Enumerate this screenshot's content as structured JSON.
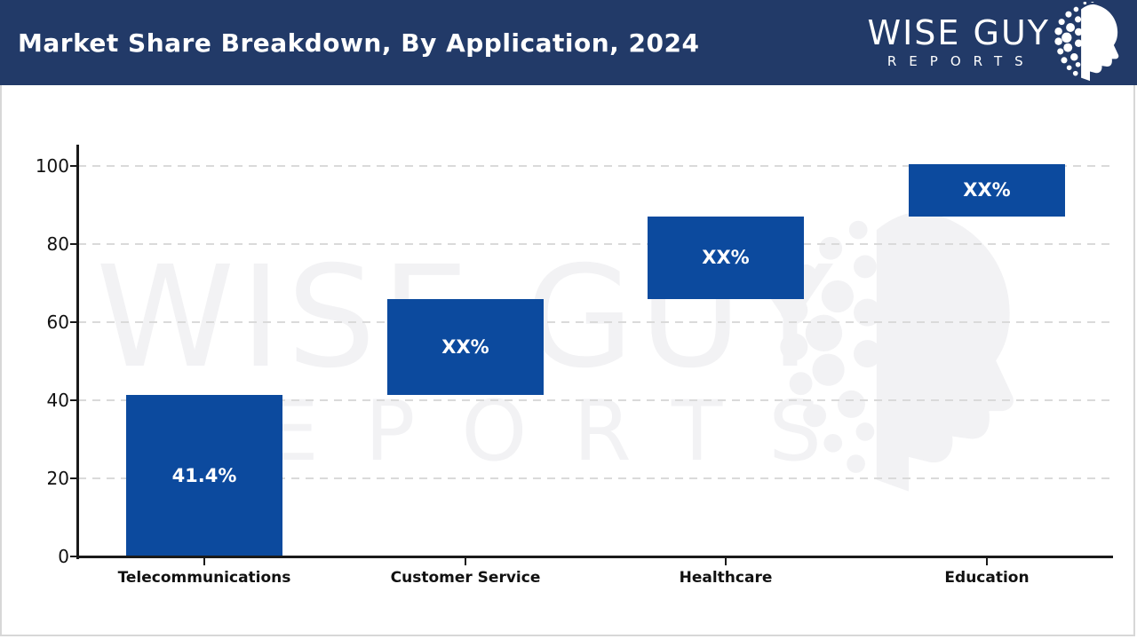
{
  "header": {
    "title": "Market Share Breakdown, By Application, 2024",
    "logo": {
      "line1": "WISE GUY",
      "line2": "REPORTS"
    }
  },
  "watermark": {
    "line1": "WISE GUY",
    "line2": "REPORTS"
  },
  "colors": {
    "header_bg": "#223A68",
    "bar": "#0C4A9E",
    "grid": "#DADADA",
    "axis": "#1A1A1A",
    "title_text": "#FFFFFF",
    "watermark": "#F2F2F4"
  },
  "chart_data": {
    "type": "bar",
    "variant": "waterfall-stacked",
    "title": "Market Share Breakdown, By Application, 2024",
    "xlabel": "",
    "ylabel": "",
    "categories": [
      "Telecommunications",
      "Customer Service",
      "Healthcare",
      "Education"
    ],
    "segments": [
      {
        "category": "Telecommunications",
        "start": 0,
        "end": 41.4,
        "label": "41.4%"
      },
      {
        "category": "Customer Service",
        "start": 41.4,
        "end": 66.0,
        "label": "XX%"
      },
      {
        "category": "Healthcare",
        "start": 66.0,
        "end": 87.0,
        "label": "XX%"
      },
      {
        "category": "Education",
        "start": 87.0,
        "end": 100.5,
        "label": "XX%"
      }
    ],
    "yticks": [
      0,
      20,
      40,
      60,
      80,
      100
    ],
    "ylim": [
      0,
      105
    ],
    "grid": "horizontal-dashed",
    "legend": "none",
    "bar_color": "#0C4A9E"
  }
}
